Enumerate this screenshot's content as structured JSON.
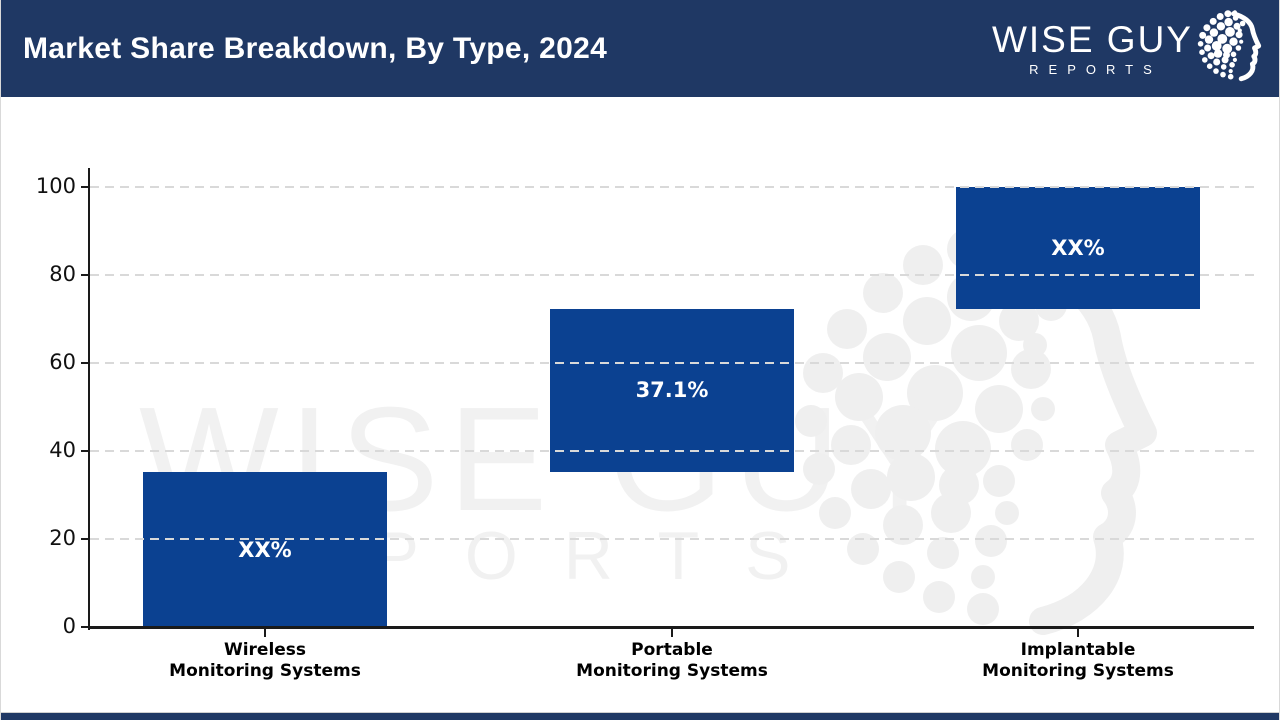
{
  "header": {
    "title": "Market Share Breakdown, By Type, 2024",
    "logo": {
      "wordmark": "WISE GUY",
      "subtext": "REPORTS"
    }
  },
  "watermark": {
    "wordmark": "WISE GUY",
    "subtext": "REPORTS"
  },
  "colors": {
    "header_bg": "#1f3864",
    "footer_bg": "#1f3864",
    "bar_fill": "#0b4191",
    "gridline": "#d9d9d9",
    "axis": "#1a1a1a",
    "value_label_text": "#ffffff",
    "watermark_text": "#f1f1f1"
  },
  "chart_data": {
    "type": "bar",
    "subtype": "floating-segment-breakdown",
    "title": "Market Share Breakdown, By Type, 2024",
    "categories": [
      "Wireless Monitoring Systems",
      "Portable Monitoring Systems",
      "Implantable Monitoring Systems"
    ],
    "category_lines": [
      [
        "Wireless",
        "Monitoring Systems"
      ],
      [
        "Portable",
        "Monitoring Systems"
      ],
      [
        "Implantable",
        "Monitoring Systems"
      ]
    ],
    "bars": [
      {
        "category": "Wireless Monitoring Systems",
        "start": 0,
        "end": 35.2,
        "value_label": "XX%"
      },
      {
        "category": "Portable Monitoring Systems",
        "start": 35.2,
        "end": 72.3,
        "value_label": "37.1%"
      },
      {
        "category": "Implantable Monitoring Systems",
        "start": 72.3,
        "end": 100,
        "value_label": "XX%"
      }
    ],
    "ylim": [
      0,
      104
    ],
    "yticks": [
      0,
      20,
      40,
      60,
      80,
      100
    ],
    "xlabel": "",
    "ylabel": "",
    "grid": "dashed-horizontal",
    "grid_above_bars": true,
    "legend": "none"
  }
}
